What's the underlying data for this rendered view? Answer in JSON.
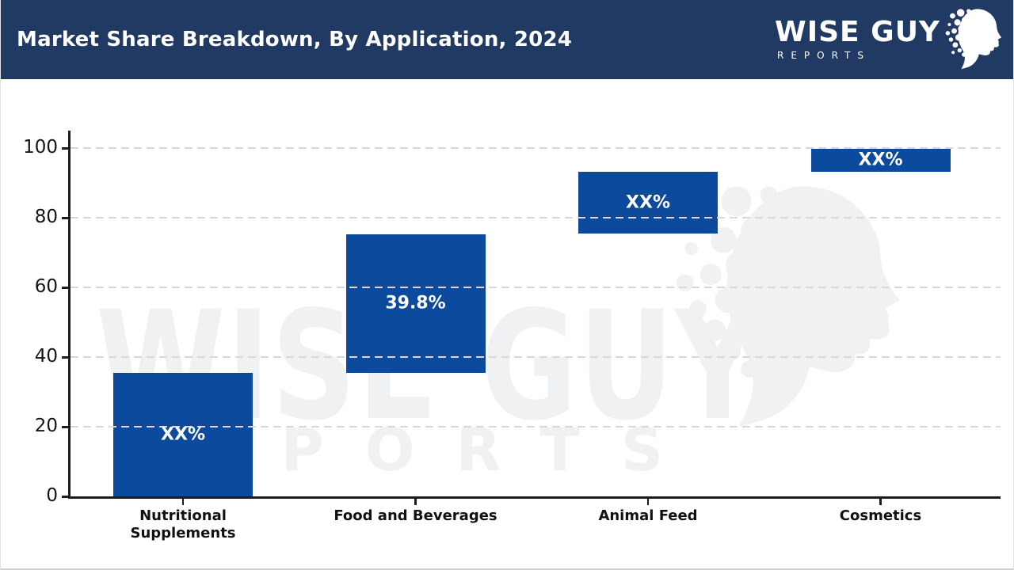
{
  "header": {
    "title": "Market Share Breakdown, By Application, 2024",
    "bg_color": "#213a63",
    "logo": {
      "brand_line1": "WISE GUY",
      "brand_line2": "REPORTS"
    }
  },
  "watermark": {
    "line1": "WISE GUY",
    "line2": "REPORTS"
  },
  "chart_data": {
    "type": "bar",
    "subtype": "waterfall",
    "title": "Market Share Breakdown, By Application, 2024",
    "categories": [
      "Nutritional Supplements",
      "Food and Beverages",
      "Animal Feed",
      "Cosmetics"
    ],
    "category_label_lines": [
      [
        "Nutritional",
        "Supplements"
      ],
      [
        "Food and Beverages"
      ],
      [
        "Animal Feed"
      ],
      [
        "Cosmetics"
      ]
    ],
    "bars": [
      {
        "category": "Nutritional Supplements",
        "start": 0,
        "end": 35.5,
        "label": "XX%"
      },
      {
        "category": "Food and Beverages",
        "start": 35.5,
        "end": 75.3,
        "label": "39.8%"
      },
      {
        "category": "Animal Feed",
        "start": 75.4,
        "end": 93.2,
        "label": "XX%"
      },
      {
        "category": "Cosmetics",
        "start": 93.2,
        "end": 99.8,
        "label": "XX%"
      }
    ],
    "xlabel": "",
    "ylabel": "",
    "ylim": [
      0,
      105
    ],
    "yticks": [
      0,
      20,
      40,
      60,
      80,
      100
    ],
    "grid": "horizontal-dashed",
    "legend": null,
    "bar_color": "#0b4a9c",
    "value_label_color": "#ffffff"
  },
  "colors": {
    "header_bg": "#213a63",
    "bar": "#0b4a9c",
    "grid": "#d9d9d9",
    "axis": "#1c1c1c",
    "watermark": "#f0f1f3"
  }
}
